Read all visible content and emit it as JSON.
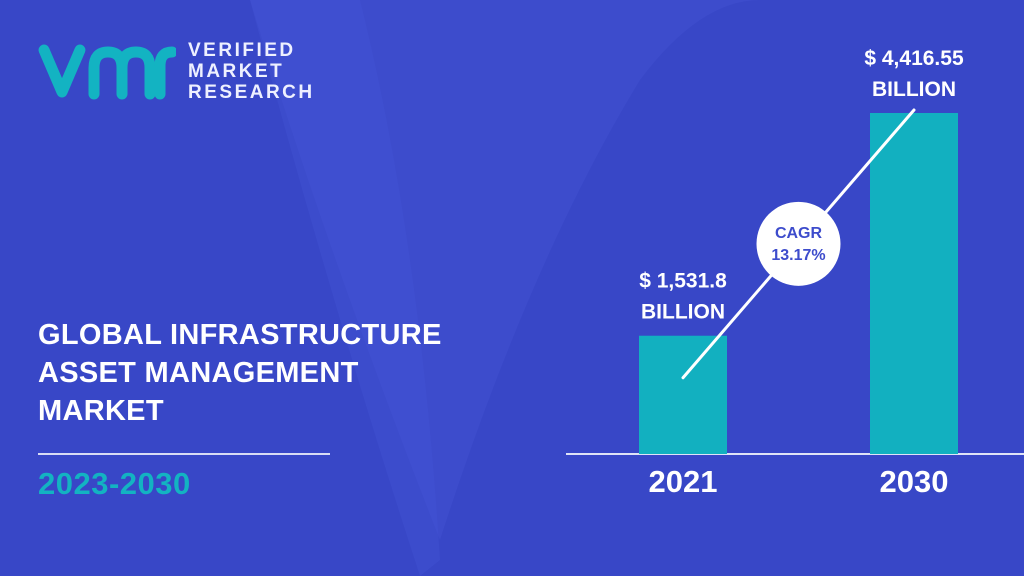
{
  "brand": {
    "line1": "VERIFIED",
    "line2": "MARKET",
    "line3": "RESEARCH",
    "logo_color": "#13b3c2"
  },
  "title_lines": [
    "GLOBAL INFRASTRUCTURE",
    "ASSET MANAGEMENT",
    "MARKET"
  ],
  "period": "2023-2030",
  "colors": {
    "background": "#3d4ccc",
    "bar": "#12b0c0",
    "accent": "#13b3c2"
  },
  "chart_data": {
    "type": "bar",
    "categories": [
      "2021",
      "2030"
    ],
    "values": [
      1531.8,
      4416.55
    ],
    "value_labels": [
      [
        "$ 1,531.8",
        "BILLION"
      ],
      [
        "$ 4,416.55",
        "BILLION"
      ]
    ],
    "cagr": {
      "label": "CAGR",
      "value": "13.17%"
    },
    "ylim": [
      0,
      5000
    ],
    "grid": false,
    "legend": "none"
  }
}
